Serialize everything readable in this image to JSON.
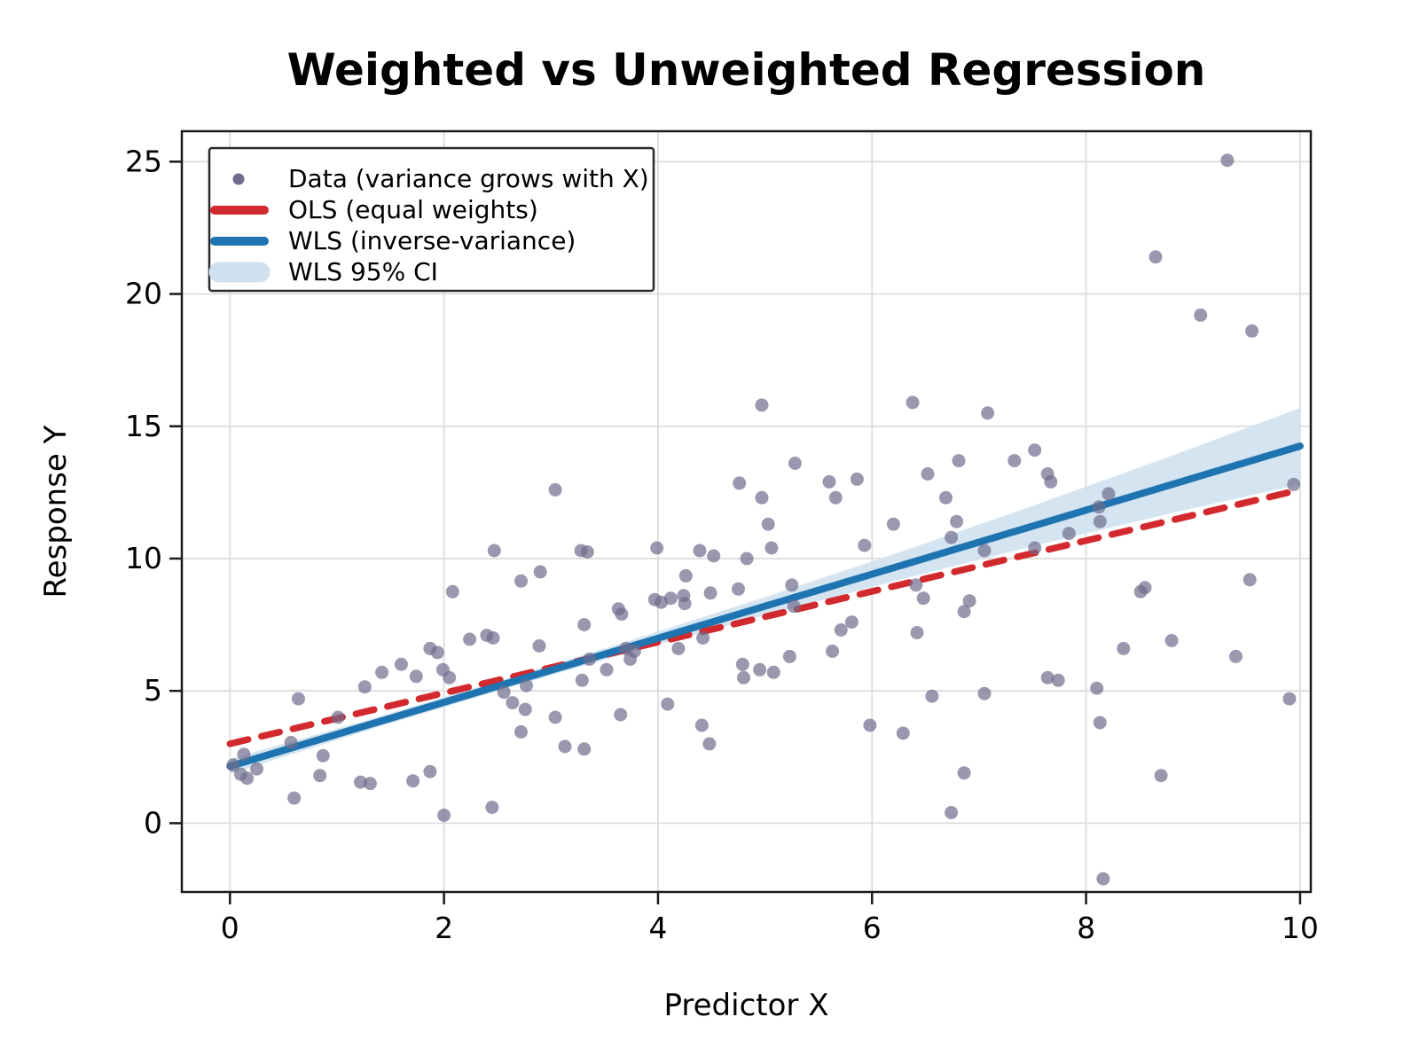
{
  "chart_data": {
    "type": "scatter",
    "title": "Weighted vs Unweighted Regression",
    "xlabel": "Predictor X",
    "ylabel": "Response Y",
    "xlim": [
      -0.45,
      10.1
    ],
    "ylim": [
      -2.6,
      26.15
    ],
    "xticks": [
      0,
      2,
      4,
      6,
      8,
      10
    ],
    "yticks": [
      0,
      5,
      10,
      15,
      20,
      25
    ],
    "grid": true,
    "legend_position": "upper left",
    "colors": {
      "marker": "#6f6c8c",
      "ols_red": "#d2292e",
      "wls_blue": "#1e74b0",
      "ci_band": "#cfe1ef",
      "grid": "#dcdcdc",
      "axis": "#1a1a1a"
    },
    "series": [
      {
        "name": "Data (variance grows with X)",
        "kind": "scatter",
        "points": [
          [
            0.03,
            2.2
          ],
          [
            0.1,
            1.85
          ],
          [
            0.13,
            2.6
          ],
          [
            0.16,
            1.7
          ],
          [
            0.25,
            2.05
          ],
          [
            0.57,
            3.05
          ],
          [
            0.6,
            0.95
          ],
          [
            0.64,
            4.7
          ],
          [
            0.84,
            1.8
          ],
          [
            0.87,
            2.55
          ],
          [
            1.01,
            4.0
          ],
          [
            1.22,
            1.55
          ],
          [
            1.26,
            5.15
          ],
          [
            1.31,
            1.5
          ],
          [
            1.42,
            5.7
          ],
          [
            1.6,
            6.0
          ],
          [
            1.71,
            1.6
          ],
          [
            1.74,
            5.55
          ],
          [
            1.87,
            6.6
          ],
          [
            1.87,
            1.95
          ],
          [
            1.94,
            6.45
          ],
          [
            1.99,
            5.8
          ],
          [
            2.0,
            0.3
          ],
          [
            2.05,
            5.5
          ],
          [
            2.08,
            8.75
          ],
          [
            2.24,
            6.95
          ],
          [
            2.4,
            7.1
          ],
          [
            2.46,
            7.0
          ],
          [
            2.45,
            0.6
          ],
          [
            2.47,
            10.3
          ],
          [
            2.56,
            4.95
          ],
          [
            2.64,
            4.55
          ],
          [
            2.72,
            3.45
          ],
          [
            2.72,
            9.15
          ],
          [
            2.76,
            4.3
          ],
          [
            2.77,
            5.2
          ],
          [
            2.89,
            6.7
          ],
          [
            2.9,
            9.5
          ],
          [
            3.04,
            12.6
          ],
          [
            3.04,
            4.0
          ],
          [
            3.13,
            2.9
          ],
          [
            3.28,
            10.3
          ],
          [
            3.34,
            10.25
          ],
          [
            3.29,
            5.4
          ],
          [
            3.31,
            2.8
          ],
          [
            3.31,
            7.5
          ],
          [
            3.36,
            6.2
          ],
          [
            3.52,
            5.8
          ],
          [
            3.63,
            8.1
          ],
          [
            3.65,
            4.1
          ],
          [
            3.66,
            7.9
          ],
          [
            3.7,
            6.6
          ],
          [
            3.74,
            6.2
          ],
          [
            3.78,
            6.5
          ],
          [
            3.97,
            8.45
          ],
          [
            3.99,
            10.4
          ],
          [
            4.03,
            8.35
          ],
          [
            4.09,
            4.5
          ],
          [
            4.12,
            8.5
          ],
          [
            4.19,
            6.6
          ],
          [
            4.24,
            8.6
          ],
          [
            4.25,
            8.3
          ],
          [
            4.26,
            9.35
          ],
          [
            4.39,
            10.3
          ],
          [
            4.41,
            3.7
          ],
          [
            4.42,
            7.0
          ],
          [
            4.48,
            3.0
          ],
          [
            4.49,
            8.7
          ],
          [
            4.52,
            10.1
          ],
          [
            4.75,
            8.85
          ],
          [
            4.76,
            12.85
          ],
          [
            4.79,
            6.0
          ],
          [
            4.8,
            5.5
          ],
          [
            4.83,
            10.0
          ],
          [
            4.95,
            5.8
          ],
          [
            4.97,
            15.8
          ],
          [
            4.97,
            12.3
          ],
          [
            5.03,
            11.3
          ],
          [
            5.06,
            10.4
          ],
          [
            5.08,
            5.7
          ],
          [
            5.23,
            6.3
          ],
          [
            5.25,
            9.0
          ],
          [
            5.27,
            8.2
          ],
          [
            5.28,
            13.6
          ],
          [
            5.6,
            12.9
          ],
          [
            5.63,
            6.5
          ],
          [
            5.66,
            12.3
          ],
          [
            5.71,
            7.3
          ],
          [
            5.81,
            7.6
          ],
          [
            5.86,
            13.0
          ],
          [
            5.93,
            10.5
          ],
          [
            5.98,
            3.7
          ],
          [
            6.2,
            11.3
          ],
          [
            6.29,
            3.4
          ],
          [
            6.38,
            15.9
          ],
          [
            6.41,
            9.0
          ],
          [
            6.42,
            7.2
          ],
          [
            6.48,
            8.5
          ],
          [
            6.52,
            13.2
          ],
          [
            6.56,
            4.8
          ],
          [
            6.69,
            12.3
          ],
          [
            6.74,
            10.8
          ],
          [
            6.74,
            0.4
          ],
          [
            6.79,
            11.4
          ],
          [
            6.81,
            13.7
          ],
          [
            6.86,
            8.0
          ],
          [
            6.86,
            1.9
          ],
          [
            6.91,
            8.4
          ],
          [
            7.05,
            10.3
          ],
          [
            7.05,
            4.9
          ],
          [
            7.08,
            15.5
          ],
          [
            7.33,
            13.7
          ],
          [
            7.52,
            14.1
          ],
          [
            7.52,
            10.4
          ],
          [
            7.64,
            13.2
          ],
          [
            7.67,
            12.9
          ],
          [
            7.64,
            5.5
          ],
          [
            7.74,
            5.4
          ],
          [
            7.84,
            10.95
          ],
          [
            8.1,
            5.1
          ],
          [
            8.12,
            11.95
          ],
          [
            8.13,
            11.4
          ],
          [
            8.13,
            3.8
          ],
          [
            8.16,
            -2.1
          ],
          [
            8.21,
            12.45
          ],
          [
            8.35,
            6.6
          ],
          [
            8.51,
            8.75
          ],
          [
            8.55,
            8.9
          ],
          [
            8.65,
            21.4
          ],
          [
            8.7,
            1.8
          ],
          [
            8.8,
            6.9
          ],
          [
            9.07,
            19.2
          ],
          [
            9.32,
            25.05
          ],
          [
            9.4,
            6.3
          ],
          [
            9.53,
            9.2
          ],
          [
            9.55,
            18.6
          ],
          [
            9.9,
            4.7
          ],
          [
            9.94,
            12.8
          ]
        ]
      },
      {
        "name": "OLS (equal weights)",
        "kind": "line",
        "style": "dashed",
        "slope": 0.96,
        "intercept": 3.0,
        "x": [
          0,
          10
        ],
        "y": [
          3.0,
          12.6
        ]
      },
      {
        "name": "WLS (inverse-variance)",
        "kind": "line",
        "style": "solid",
        "slope": 1.21,
        "intercept": 2.15,
        "x": [
          0,
          10
        ],
        "y": [
          2.15,
          14.25
        ]
      },
      {
        "name": "WLS 95% CI",
        "kind": "band",
        "x": [
          0,
          1.25,
          2.5,
          3.75,
          5,
          6.25,
          7.5,
          8.75,
          10
        ],
        "upper": [
          2.43,
          3.86,
          5.36,
          6.92,
          8.54,
          10.23,
          11.99,
          13.81,
          15.69
        ],
        "lower": [
          1.87,
          3.46,
          5.0,
          6.46,
          7.86,
          9.19,
          10.47,
          11.67,
          12.81
        ]
      }
    ]
  }
}
